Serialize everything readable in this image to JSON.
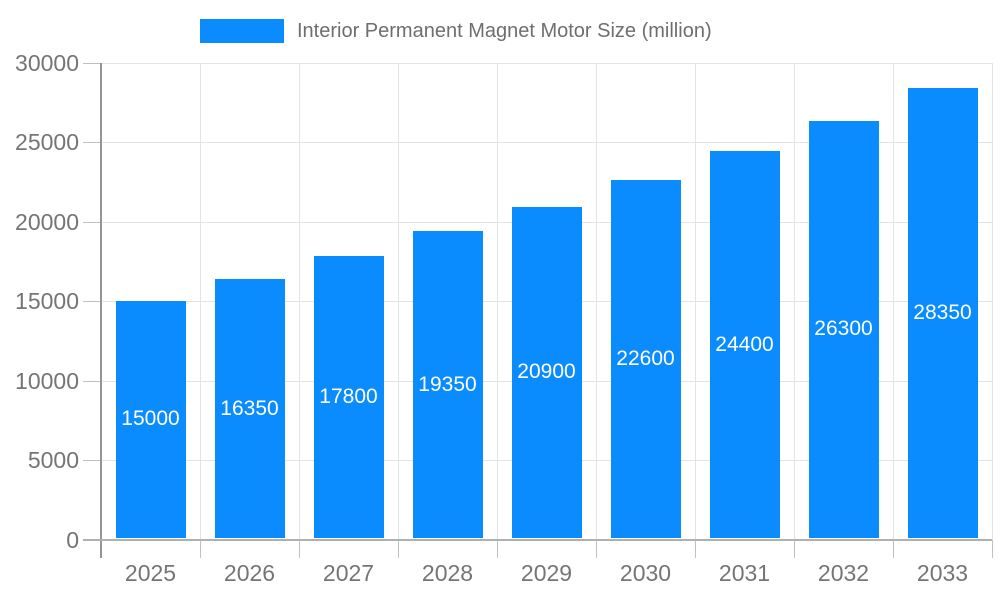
{
  "chart_data": {
    "type": "bar",
    "title": "Interior Permanent Magnet Motor Size (million)",
    "legend": {
      "label": "Interior Permanent Magnet Motor Size (million)",
      "position": "top"
    },
    "categories": [
      "2025",
      "2026",
      "2027",
      "2028",
      "2029",
      "2030",
      "2031",
      "2032",
      "2033"
    ],
    "values": [
      15000,
      16350,
      17800,
      19350,
      20900,
      22600,
      24400,
      26300,
      28350
    ],
    "bar_value_labels": [
      "15000",
      "16350",
      "17800",
      "19350",
      "20900",
      "22600",
      "24400",
      "26300",
      "28350"
    ],
    "xlabel": "",
    "ylabel": "",
    "ylim": [
      0,
      30000
    ],
    "ytick_interval": 5000,
    "yticks": [
      0,
      5000,
      10000,
      15000,
      20000,
      25000,
      30000
    ],
    "ytick_labels": [
      "0",
      "5000",
      "10000",
      "15000",
      "20000",
      "25000",
      "30000"
    ],
    "grid": true,
    "colors": {
      "bar": "#0a8cff",
      "bar_value_text": "#ffffff",
      "axis_text": "#757575",
      "legend_text": "#6e6e6e",
      "gridline": "#e3e3e3",
      "tick": "#c0c0c0",
      "y_axis_line": "#949494",
      "x_axis_line": "#b0b0b0",
      "background": "#ffffff"
    }
  }
}
